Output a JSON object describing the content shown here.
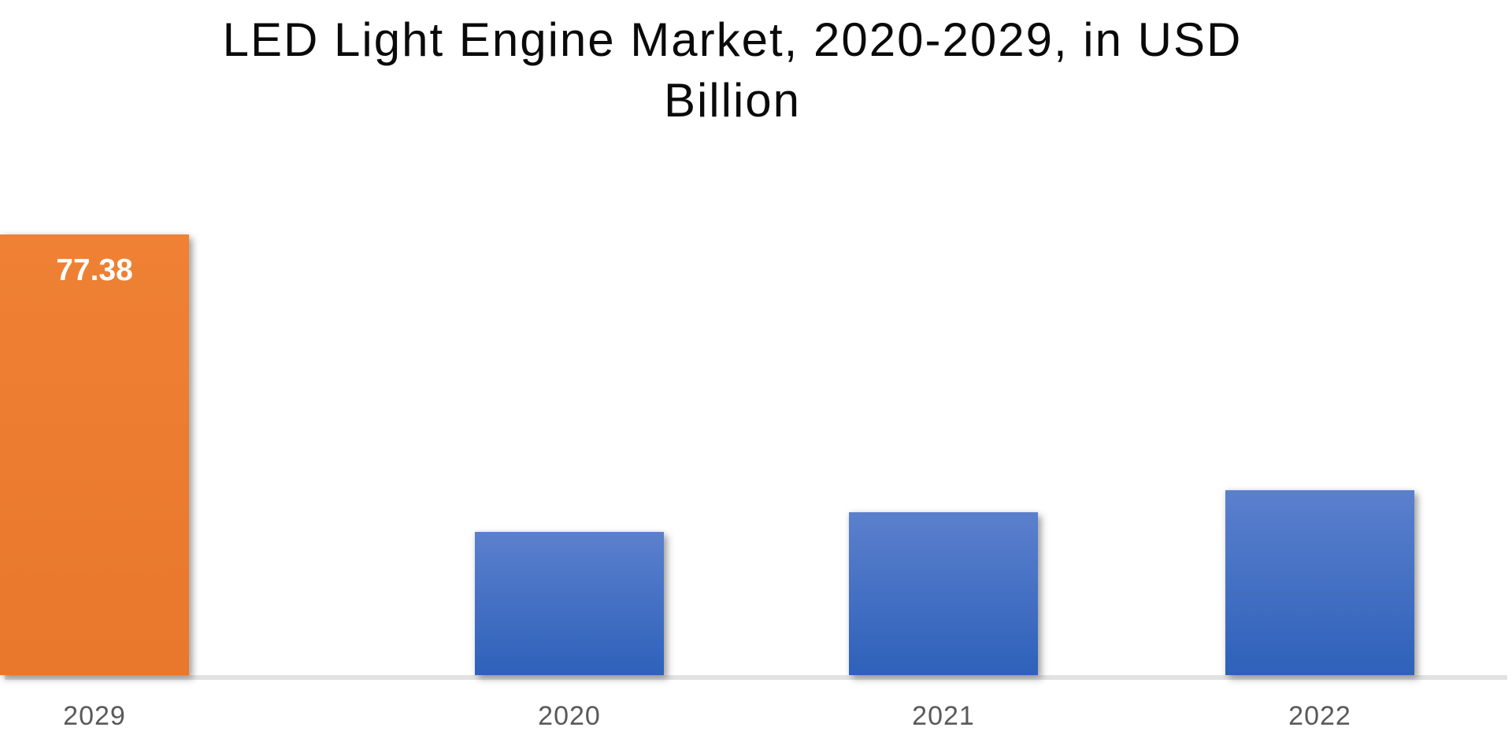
{
  "chart_data": {
    "type": "bar",
    "title": "LED Light Engine Market, 2020-2029, in USD Billion",
    "title_lines": [
      "LED Light Engine Market, 2020-2029, in USD",
      "Billion"
    ],
    "categories": [
      "2020",
      "2021",
      "2022",
      "2029"
    ],
    "values": [
      25.1,
      28.6,
      32.41,
      77.38
    ],
    "data_labels": [
      "",
      "",
      "",
      "77.38"
    ],
    "bar_colors": [
      "blue",
      "blue",
      "blue",
      "orange"
    ],
    "xlabel": "",
    "ylabel": "",
    "ylim": [
      0,
      80
    ],
    "grid": false,
    "legend": false,
    "colors": {
      "blue_top": "#5b80cd",
      "blue_bottom": "#2e61ba",
      "orange_top": "#ef8134",
      "orange_bottom": "#e9772c",
      "axis_line": "#e2e2e2",
      "tick_label": "#595959",
      "data_label": "#ffffff",
      "title": "#0a0a0a",
      "background": "#ffffff"
    }
  }
}
